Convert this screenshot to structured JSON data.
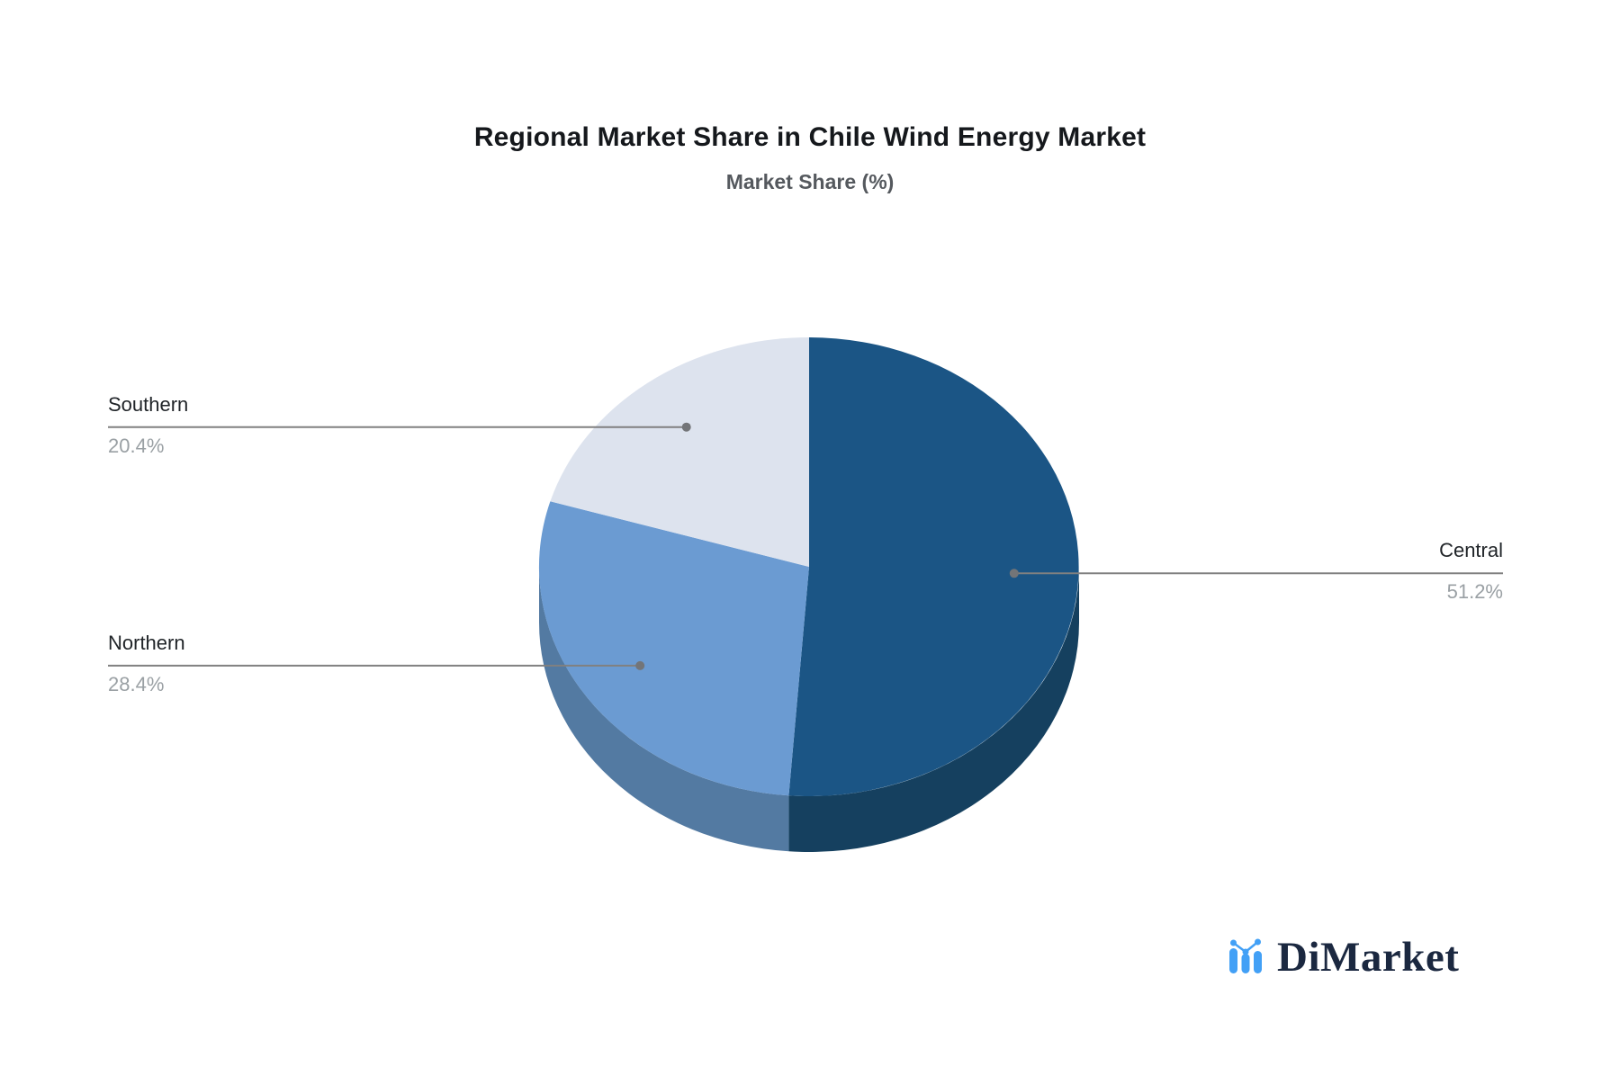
{
  "title": "Regional Market Share in Chile Wind Energy Market",
  "subtitle": "Market Share (%)",
  "chart_data": {
    "type": "pie",
    "title": "Regional Market Share in Chile Wind Energy Market",
    "subtitle": "Market Share (%)",
    "unit": "%",
    "effect": "3d",
    "start_angle_deg": -90,
    "direction": "clockwise",
    "legend_position": "none",
    "slices": [
      {
        "label": "Central",
        "value": 51.2,
        "display": "51.2%",
        "color": "#1b5585",
        "side_color": "#15405f",
        "label_side": "right"
      },
      {
        "label": "Northern",
        "value": 28.4,
        "display": "28.4%",
        "color": "#6b9bd2",
        "side_color": "#537aa2",
        "label_side": "left"
      },
      {
        "label": "Southern",
        "value": 20.4,
        "display": "20.4%",
        "color": "#dde3ee",
        "side_color": "#b9c3d6",
        "label_side": "left"
      }
    ],
    "connector_color": "#808080",
    "dot_color": "#737578",
    "label_color": "#212529",
    "value_color": "#9aa0a4"
  },
  "logo": {
    "text": "DiMarket",
    "text_color": "#1b2840",
    "icon_color": "#42a0f6",
    "icon": "bar-line-chart-icon"
  }
}
